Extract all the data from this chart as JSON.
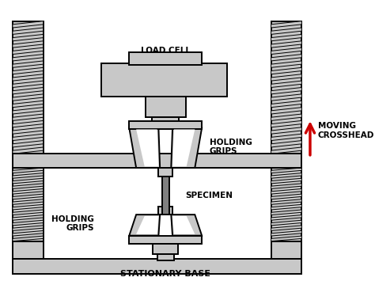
{
  "background_color": "#ffffff",
  "fill_color": "#c8c8c8",
  "fill_dark": "#b0b0b0",
  "edge_color": "#000000",
  "arrow_color": "#cc0000",
  "specimen_color": "#808080",
  "labels": {
    "load_cell": "LOAD CELL",
    "holding_grips_top": "HOLDING\nGRIPS",
    "specimen": "SPECIMEN",
    "holding_grips_bottom": "HOLDING\nGRIPS",
    "moving_crosshead": "MOVING\nCROSSHEAD",
    "stationary_base": "STATIONARY BASE"
  },
  "label_fontsize": 7.5,
  "label_fontweight": "bold"
}
